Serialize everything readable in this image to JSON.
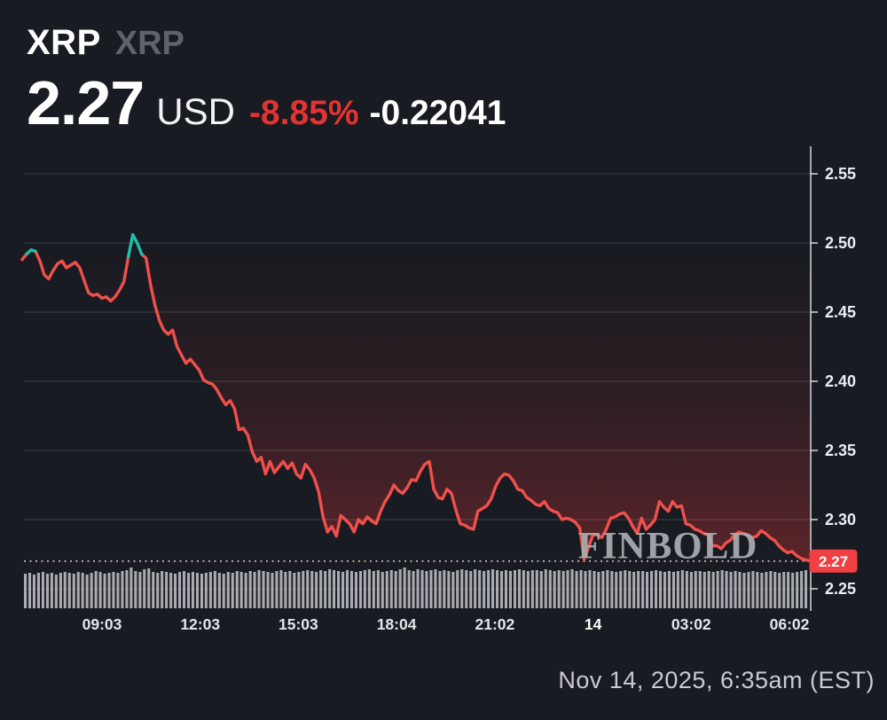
{
  "header": {
    "symbol": "XRP",
    "symbol_secondary": "XRP",
    "price": "2.27",
    "currency": "USD",
    "change_percent": "-8.85%",
    "change_absolute": "-0.22041"
  },
  "watermark": "FINBOLD",
  "footer": {
    "timestamp": "Nov 14, 2025, 6:35am (EST)"
  },
  "colors": {
    "background": "#181b21",
    "line_down": "#f0504b",
    "line_up": "#20bfa9",
    "area_red": "#c83237",
    "grid": "rgba(255,255,255,0.16)",
    "axis": "rgba(240,242,245,0.88)",
    "y_label": "#eceff2",
    "x_label": "#e3e6ea",
    "x_label_bold": "#ffffff",
    "dotted_price_line": "rgba(236,202,200,0.85)",
    "badge_red": "#ef4043",
    "badge_text": "#ffffff",
    "volume_bar": "#c9ccd1"
  },
  "chart_data": {
    "type": "line",
    "title": "XRP/USD intraday price",
    "legend": [],
    "grid": true,
    "y_axis_side": "right",
    "y_ticks": [
      "2.55",
      "2.50",
      "2.45",
      "2.40",
      "2.35",
      "2.30",
      "2.25"
    ],
    "y_tick_values": [
      2.55,
      2.5,
      2.45,
      2.4,
      2.35,
      2.3,
      2.25
    ],
    "y_range": [
      2.25,
      2.55
    ],
    "x_ticks": [
      "09:03",
      "12:03",
      "15:03",
      "18:04",
      "21:02",
      "14",
      "03:02",
      "06:02"
    ],
    "x_bold_tick": "14",
    "current_price": 2.27,
    "current_price_label": "2.27",
    "previous_close": 2.49241,
    "prices": [
      2.488,
      2.492,
      2.495,
      2.494,
      2.487,
      2.477,
      2.474,
      2.48,
      2.485,
      2.487,
      2.482,
      2.484,
      2.486,
      2.482,
      2.473,
      2.464,
      2.462,
      2.463,
      2.46,
      2.461,
      2.458,
      2.461,
      2.466,
      2.472,
      2.49,
      2.506,
      2.5,
      2.492,
      2.489,
      2.47,
      2.455,
      2.444,
      2.437,
      2.434,
      2.437,
      2.425,
      2.419,
      2.413,
      2.416,
      2.412,
      2.408,
      2.401,
      2.399,
      2.398,
      2.394,
      2.388,
      2.383,
      2.386,
      2.38,
      2.365,
      2.366,
      2.361,
      2.349,
      2.342,
      2.345,
      2.333,
      2.342,
      2.334,
      2.338,
      2.342,
      2.337,
      2.341,
      2.333,
      2.33,
      2.34,
      2.336,
      2.33,
      2.32,
      2.302,
      2.291,
      2.295,
      2.288,
      2.303,
      2.3,
      2.297,
      2.291,
      2.3,
      2.297,
      2.302,
      2.299,
      2.297,
      2.306,
      2.313,
      2.318,
      2.325,
      2.321,
      2.319,
      2.323,
      2.329,
      2.328,
      2.335,
      2.34,
      2.342,
      2.322,
      2.316,
      2.315,
      2.322,
      2.319,
      2.307,
      2.297,
      2.296,
      2.294,
      2.293,
      2.306,
      2.308,
      2.31,
      2.315,
      2.324,
      2.33,
      2.333,
      2.332,
      2.328,
      2.322,
      2.321,
      2.316,
      2.314,
      2.311,
      2.31,
      2.313,
      2.308,
      2.306,
      2.305,
      2.3,
      2.301,
      2.3,
      2.298,
      2.294,
      2.271,
      2.28,
      2.289,
      2.289,
      2.287,
      2.293,
      2.301,
      2.302,
      2.304,
      2.305,
      2.301,
      2.295,
      2.29,
      2.301,
      2.293,
      2.296,
      2.3,
      2.313,
      2.309,
      2.306,
      2.313,
      2.309,
      2.31,
      2.297,
      2.296,
      2.293,
      2.292,
      2.29,
      2.289,
      2.281,
      2.281,
      2.279,
      2.283,
      2.285,
      2.289,
      2.291,
      2.29,
      2.289,
      2.287,
      2.288,
      2.292,
      2.29,
      2.287,
      2.285,
      2.281,
      2.278,
      2.276,
      2.277,
      2.274,
      2.272,
      2.271,
      2.27
    ],
    "volume_bars": [
      39,
      40,
      38,
      40,
      41,
      39,
      40,
      38,
      40,
      41,
      40,
      39,
      41,
      40,
      38,
      40,
      42,
      41,
      39,
      40,
      41,
      40,
      42,
      43,
      46,
      42,
      41,
      44,
      45,
      41,
      40,
      42,
      41,
      40,
      39,
      41,
      42,
      40,
      41,
      40,
      39,
      40,
      41,
      42,
      40,
      39,
      41,
      40,
      42,
      41,
      40,
      42,
      41,
      43,
      42,
      41,
      40,
      42,
      43,
      41,
      42,
      40,
      41,
      42,
      43,
      42,
      41,
      43,
      42,
      44,
      43,
      42,
      41,
      43,
      42,
      41,
      42,
      43,
      44,
      42,
      43,
      41,
      42,
      43,
      42,
      44,
      46,
      43,
      42,
      44,
      43,
      42,
      43,
      44,
      42,
      43,
      42,
      41,
      43,
      44,
      43,
      42,
      44,
      43,
      42,
      43,
      44,
      43,
      42,
      43,
      42,
      43,
      44,
      43,
      42,
      43,
      43,
      42,
      44,
      43,
      42,
      43,
      42,
      43,
      44,
      42,
      43,
      42,
      43,
      42,
      41,
      42,
      43,
      42,
      41,
      42,
      43,
      42,
      41,
      42,
      42,
      41,
      42,
      43,
      42,
      41,
      42,
      41,
      42,
      43,
      42,
      41,
      42,
      42,
      41,
      42,
      41,
      42,
      43,
      42,
      41,
      42,
      41,
      40,
      41,
      42,
      41,
      40,
      41,
      42,
      41,
      40,
      41,
      41,
      40,
      41,
      42,
      43
    ]
  }
}
